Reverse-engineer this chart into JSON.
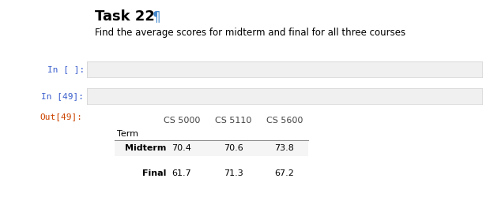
{
  "title": "Task 22",
  "pilcrow": "¶",
  "subtitle": "Find the average scores for midterm and final for all three courses",
  "in_empty_label": "In [ ]:",
  "in_49_label": "In [49]:",
  "out_49_label": "Out[49]:",
  "columns": [
    "CS 5000",
    "CS 5110",
    "CS 5600"
  ],
  "index_name": "Term",
  "row_labels": [
    "Midterm",
    "Final"
  ],
  "data": [
    [
      70.4,
      70.6,
      73.8
    ],
    [
      61.7,
      71.3,
      67.2
    ]
  ],
  "bg_color": "#ffffff",
  "input_bg": "#f0f0f0",
  "input_border": "#d0d0d0",
  "label_color_in": "#3a5fcd",
  "label_color_out": "#cc4400",
  "title_color": "#000000",
  "subtitle_color": "#000000",
  "table_header_color": "#444444",
  "pilcrow_color": "#4488cc",
  "midterm_bg": "#f5f5f5",
  "line_color": "#888888"
}
